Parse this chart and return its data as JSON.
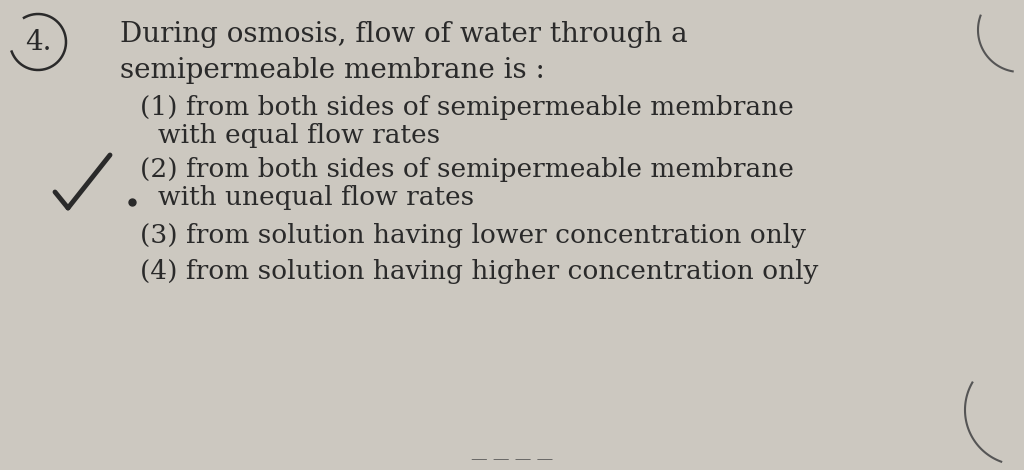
{
  "background_color": "#ccc8c0",
  "question_number": "4.",
  "question_line1": "During osmosis, flow of water through a",
  "question_line2": "semipermeable membrane is :",
  "opt1_line1": "(1) from both sides of semipermeable membrane",
  "opt1_line2": "     with equal flow rates",
  "opt2_line1": "(2) from both sides of semipermeable membrane",
  "opt2_line2": "     with unequal flow rates",
  "opt3": "(3) from solution having lower concentration only",
  "opt4": "(4) from solution having higher concentration only",
  "text_color": "#2a2a2a",
  "circle_color": "#2a2a2a",
  "font_size_q": 20,
  "font_size_opt": 19
}
